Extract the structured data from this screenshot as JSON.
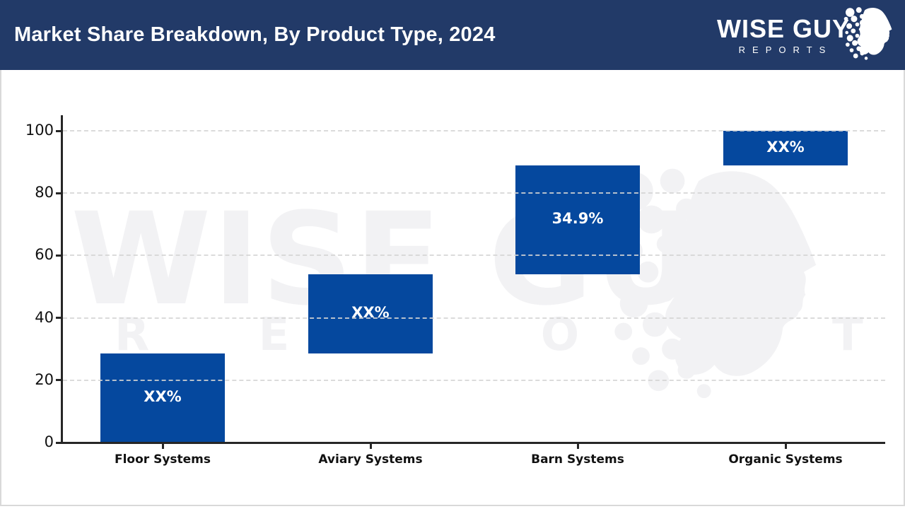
{
  "header": {
    "title": "Market Share Breakdown, By Product Type, 2024",
    "logo": {
      "line1": "WISE GUY",
      "line2": "REPORTS"
    }
  },
  "watermark": {
    "line1": "WISE GUY",
    "line2": "R E P O R T S"
  },
  "chart_data": {
    "type": "bar",
    "subtype": "floating-waterfall",
    "title": "Market Share Breakdown, By Product Type, 2024",
    "categories": [
      "Floor Systems",
      "Aviary Systems",
      "Barn Systems",
      "Organic Systems"
    ],
    "segments": [
      {
        "category": "Floor Systems",
        "start": 0,
        "end": 28.6,
        "value": 28.6,
        "label": "XX%"
      },
      {
        "category": "Aviary Systems",
        "start": 28.6,
        "end": 53.9,
        "value": 25.3,
        "label": "XX%"
      },
      {
        "category": "Barn Systems",
        "start": 53.9,
        "end": 88.8,
        "value": 34.9,
        "label": "34.9%"
      },
      {
        "category": "Organic Systems",
        "start": 88.8,
        "end": 100.0,
        "value": 11.2,
        "label": "XX%"
      }
    ],
    "xlabel": "",
    "ylabel": "",
    "yticks": [
      0,
      20,
      40,
      60,
      80,
      100
    ],
    "ylim": [
      0,
      105
    ],
    "grid": "horizontal-dashed",
    "legend": null,
    "bar_color": "#05489e",
    "bar_label_color": "#ffffff",
    "header_color": "#223A68"
  }
}
